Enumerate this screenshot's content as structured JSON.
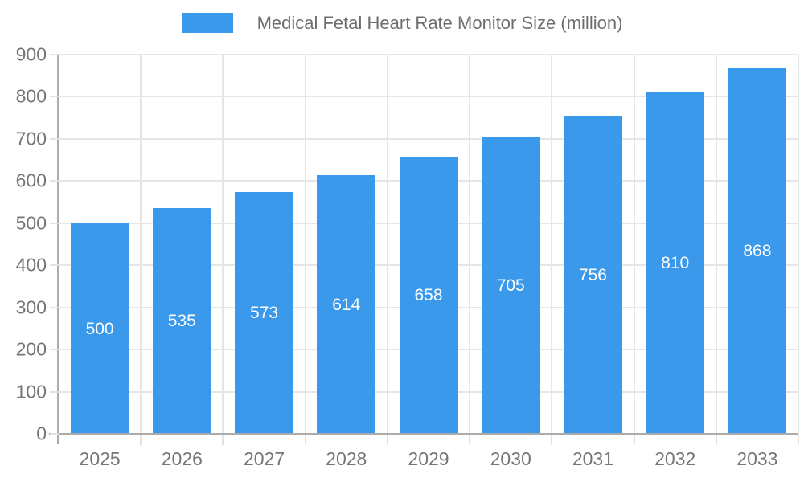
{
  "chart_data": {
    "type": "bar",
    "title": "Medical Fetal Heart Rate Monitor Size (million)",
    "categories": [
      "2025",
      "2026",
      "2027",
      "2028",
      "2029",
      "2030",
      "2031",
      "2032",
      "2033"
    ],
    "values": [
      500,
      535,
      573,
      614,
      658,
      705,
      756,
      810,
      868
    ],
    "xlabel": "",
    "ylabel": "",
    "ylim": [
      0,
      900
    ],
    "ytick_step": 100,
    "ytick_labels": [
      "0",
      "100",
      "200",
      "300",
      "400",
      "500",
      "600",
      "700",
      "800",
      "900"
    ],
    "grid": true,
    "legend_position": "top",
    "legend_entries": [
      "Medical Fetal Heart Rate Monitor Size (million)"
    ],
    "colors": {
      "bar": "#3B99EC",
      "axis_line": "#ABABAB",
      "gridline": "#E6E6E6",
      "tick": "#E2E2E2",
      "axis_text": "#757575",
      "legend_text": "#6E6E6E",
      "value_text": "#FFFFFF",
      "background": "#FFFFFF"
    }
  }
}
